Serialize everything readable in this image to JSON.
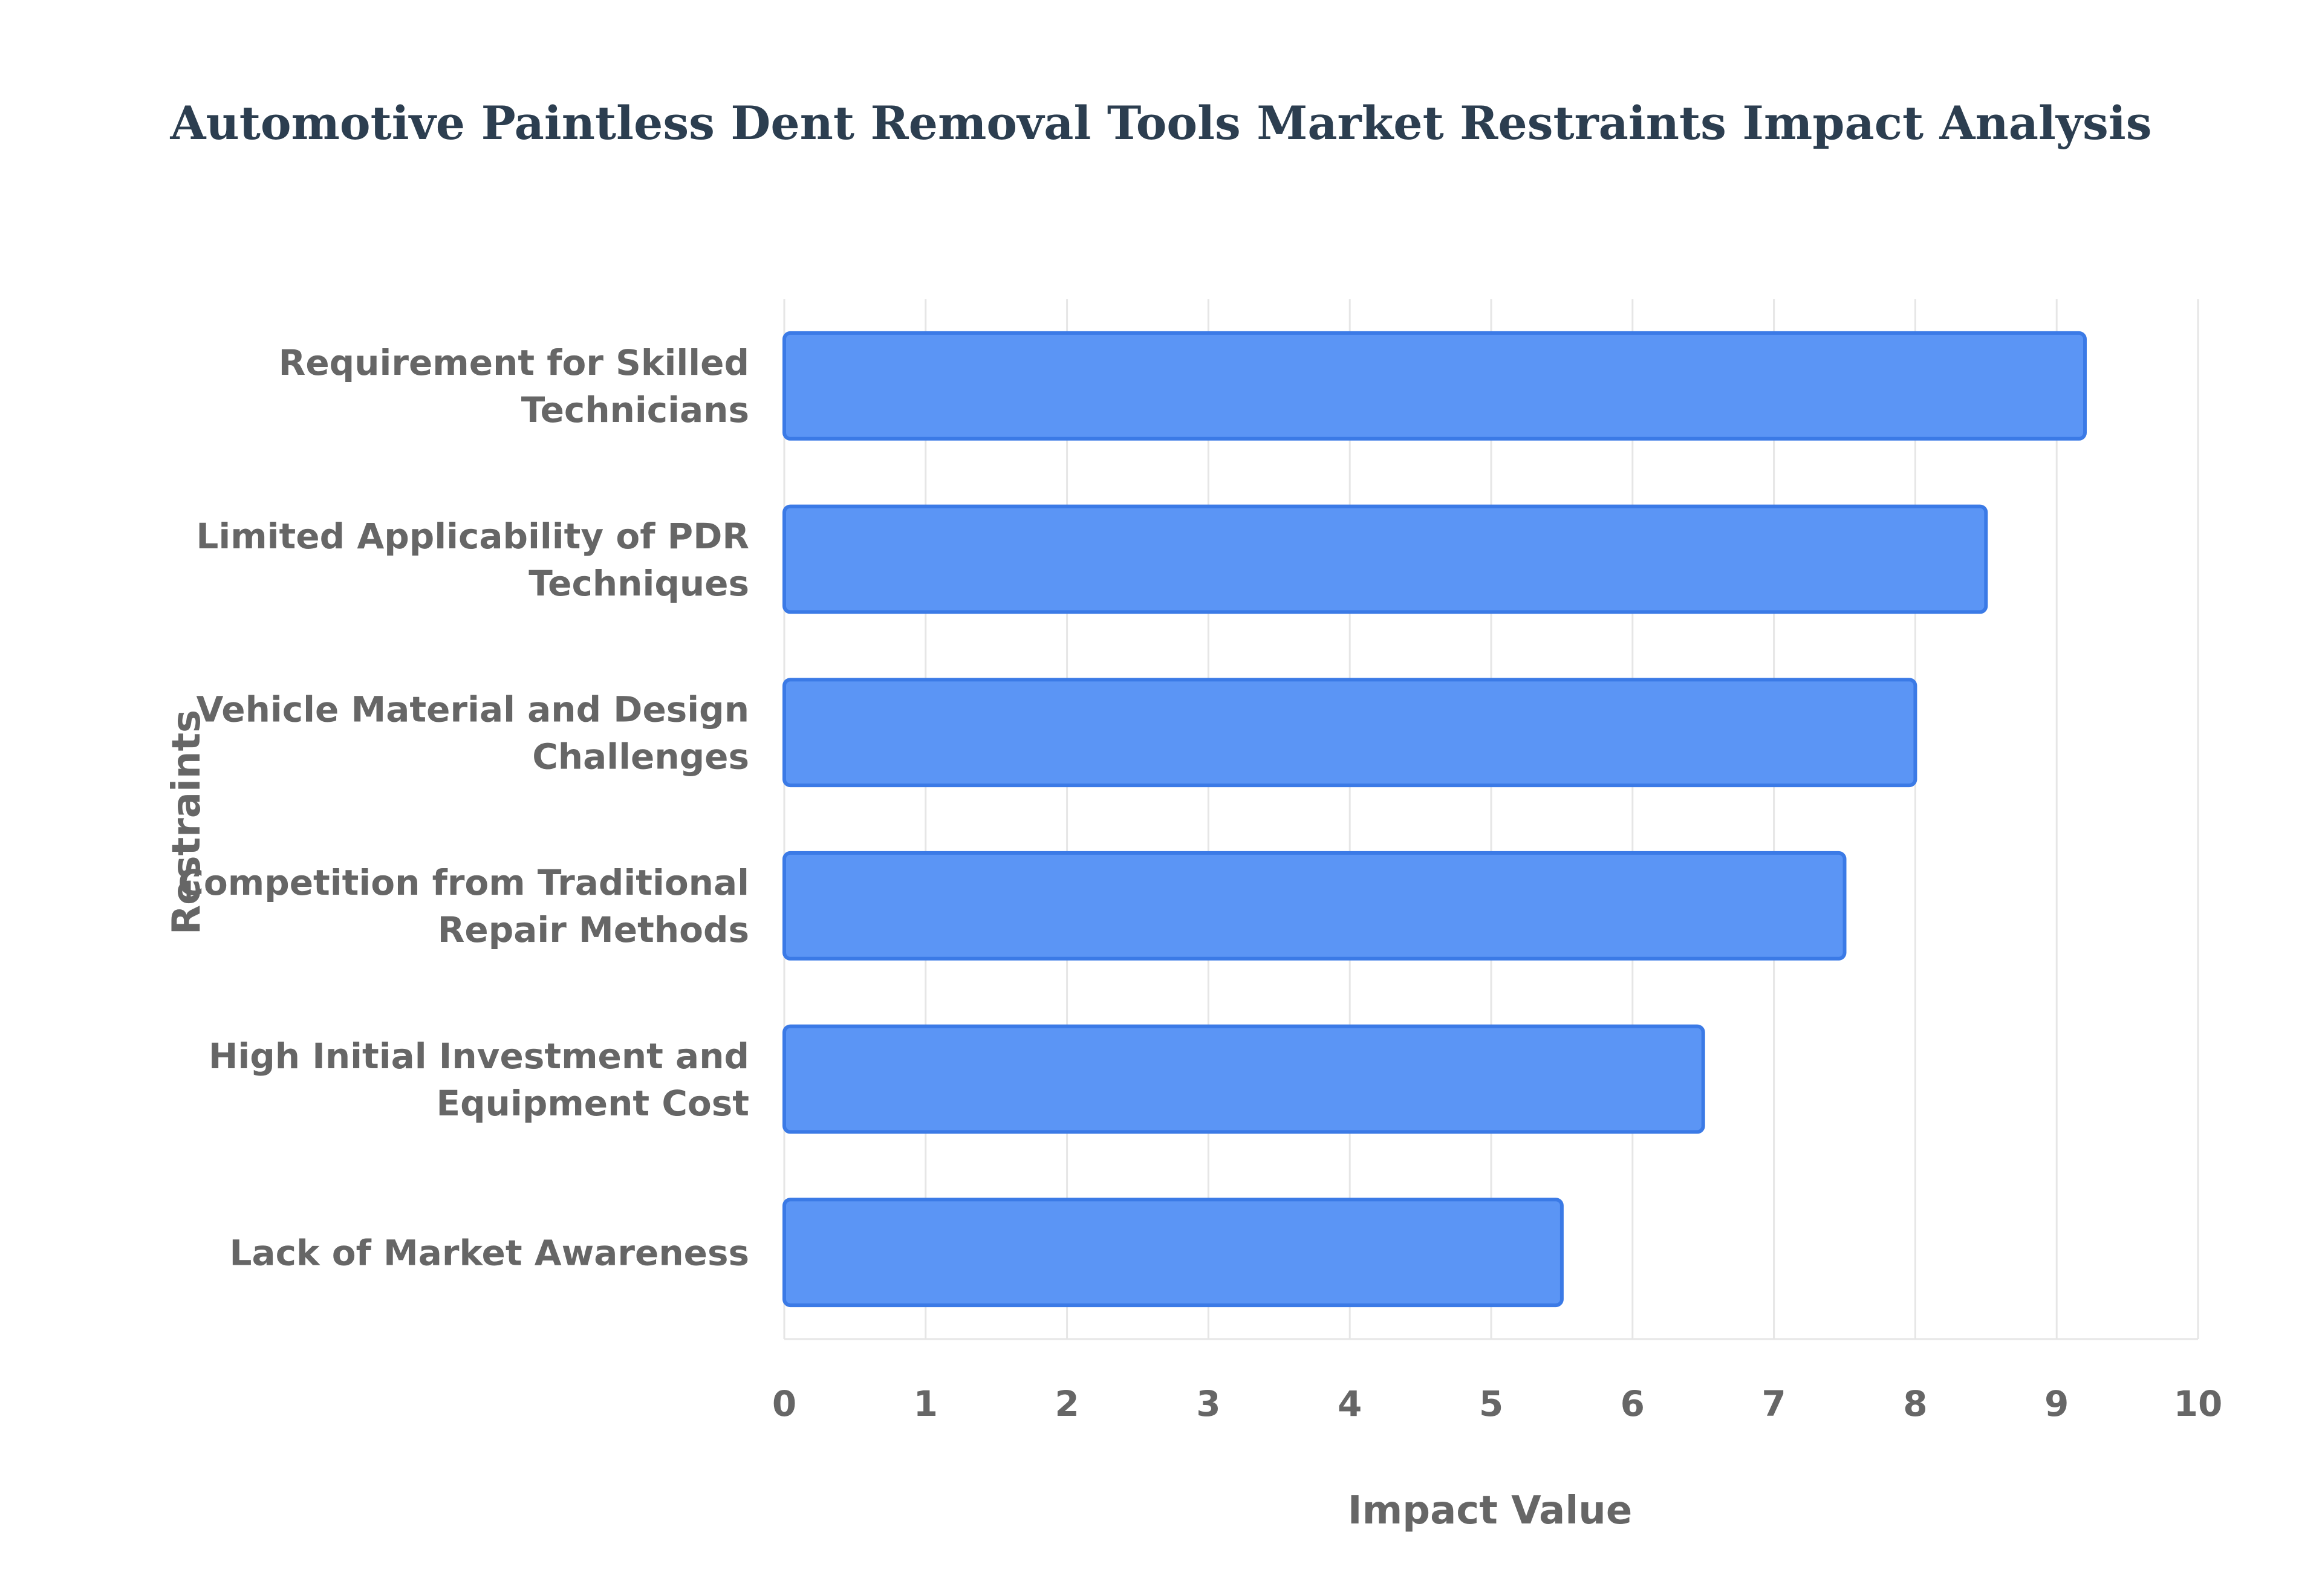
{
  "colors": {
    "title": "#2c3e50",
    "axis_text": "#666666",
    "grid": "#e6e6e6",
    "bar_fill": "#5b95f5",
    "bar_stroke": "#3b7ae6"
  },
  "chart_data": {
    "type": "bar",
    "orientation": "horizontal",
    "title": "Automotive Paintless Dent Removal Tools Market Restraints Impact Analysis",
    "xlabel": "Impact Value",
    "ylabel": "Restraints",
    "xlim": [
      0,
      10
    ],
    "x_ticks": [
      "0",
      "1",
      "2",
      "3",
      "4",
      "5",
      "6",
      "7",
      "8",
      "9",
      "10"
    ],
    "grid": true,
    "categories": [
      [
        "Requirement for Skilled",
        "Technicians"
      ],
      [
        "Limited Applicability of PDR",
        "Techniques"
      ],
      [
        "Vehicle Material and Design",
        "Challenges"
      ],
      [
        "Competition from Traditional",
        "Repair Methods"
      ],
      [
        "High Initial Investment and",
        "Equipment Cost"
      ],
      [
        "Lack of Market Awareness"
      ]
    ],
    "values": [
      9.2,
      8.5,
      8.0,
      7.5,
      6.5,
      5.5
    ]
  }
}
